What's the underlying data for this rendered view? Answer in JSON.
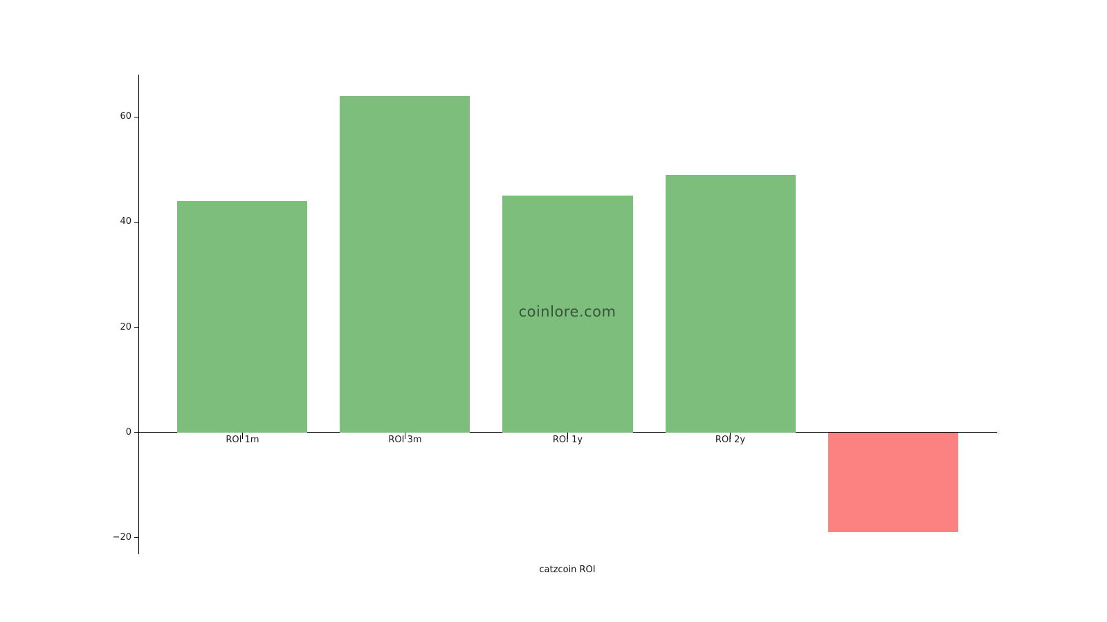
{
  "chart_data": {
    "type": "bar",
    "title": "catzcoin ROI",
    "watermark": "coinlore.com",
    "categories": [
      "ROI 1m",
      "ROI 3m",
      "ROI 1y",
      "ROI 2y",
      ""
    ],
    "values": [
      44,
      64,
      45,
      49,
      -19
    ],
    "yticks": [
      60,
      40,
      20,
      0,
      -20
    ],
    "ylim": [
      -23.15,
      68.15
    ],
    "xlim": [
      -0.64,
      4.64
    ],
    "bar_width": 0.8,
    "xlabel": "",
    "ylabel": "",
    "grid": false,
    "legend_position": "none",
    "positive_color": "#7dbe7d",
    "negative_color": "#fc8181",
    "axis_color": "#000000",
    "tick_label_color": "#1a1a1a",
    "watermark_color": "#3a523c",
    "background_color": "#ffffff",
    "axis_end_artifact_glyph": "×"
  }
}
